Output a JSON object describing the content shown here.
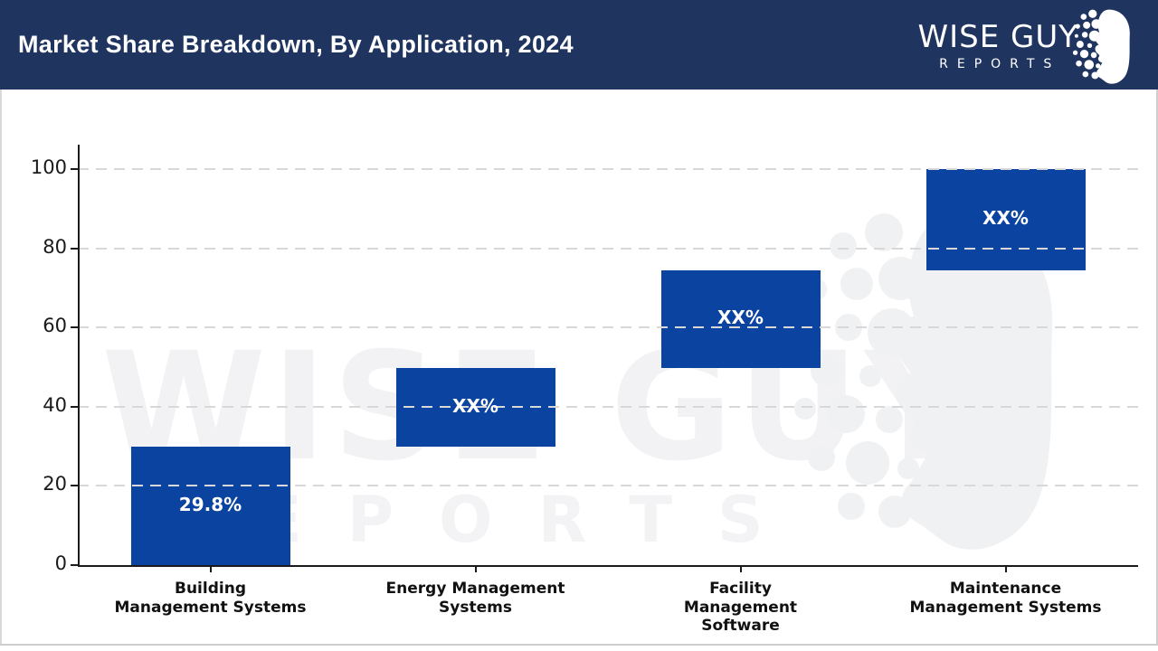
{
  "header": {
    "title": "Market Share Breakdown, By Application, 2024",
    "logo": {
      "name": "WISE GUY",
      "sub": "REPORTS"
    }
  },
  "watermark": {
    "name": "WISE GUY",
    "sub": "REPORTS"
  },
  "colors": {
    "header_bg": "#1f3560",
    "bar_blue": "#0a43a0",
    "grid_gray": "#d8d8d8",
    "axis_black": "#1a1a1a",
    "watermark_gray": "#f2f2f4"
  },
  "chart_data": {
    "type": "bar",
    "variant": "waterfall-stepped-range",
    "title": "Market Share Breakdown, By Application, 2024",
    "categories": [
      "Building Management Systems",
      "Energy Management Systems",
      "Facility Management Software",
      "Maintenance Management Systems"
    ],
    "category_display_lines": [
      "Building\nManagement Systems",
      "Energy Management\nSystems",
      "Facility\nManagement\nSoftware",
      "Maintenance\nManagement Systems"
    ],
    "bars": [
      {
        "category": "Building Management Systems",
        "start": 0,
        "end": 29.8,
        "label": "29.8%"
      },
      {
        "category": "Energy Management Systems",
        "start": 29.8,
        "end": 49.8,
        "label": "XX%"
      },
      {
        "category": "Facility Management Software",
        "start": 49.8,
        "end": 74.4,
        "label": "XX%"
      },
      {
        "category": "Maintenance Management Systems",
        "start": 74.4,
        "end": 100,
        "label": "XX%"
      }
    ],
    "yticks": [
      0,
      20,
      40,
      60,
      80,
      100
    ],
    "ytick_labels": [
      "0",
      "20",
      "40",
      "60",
      "80",
      "100"
    ],
    "ylim": [
      0,
      106
    ],
    "xlabel": "",
    "ylabel": "",
    "grid": "horizontal-dashed",
    "legend": "none",
    "bar_color": "#0a43a0",
    "value_label_color": "#ffffff"
  }
}
